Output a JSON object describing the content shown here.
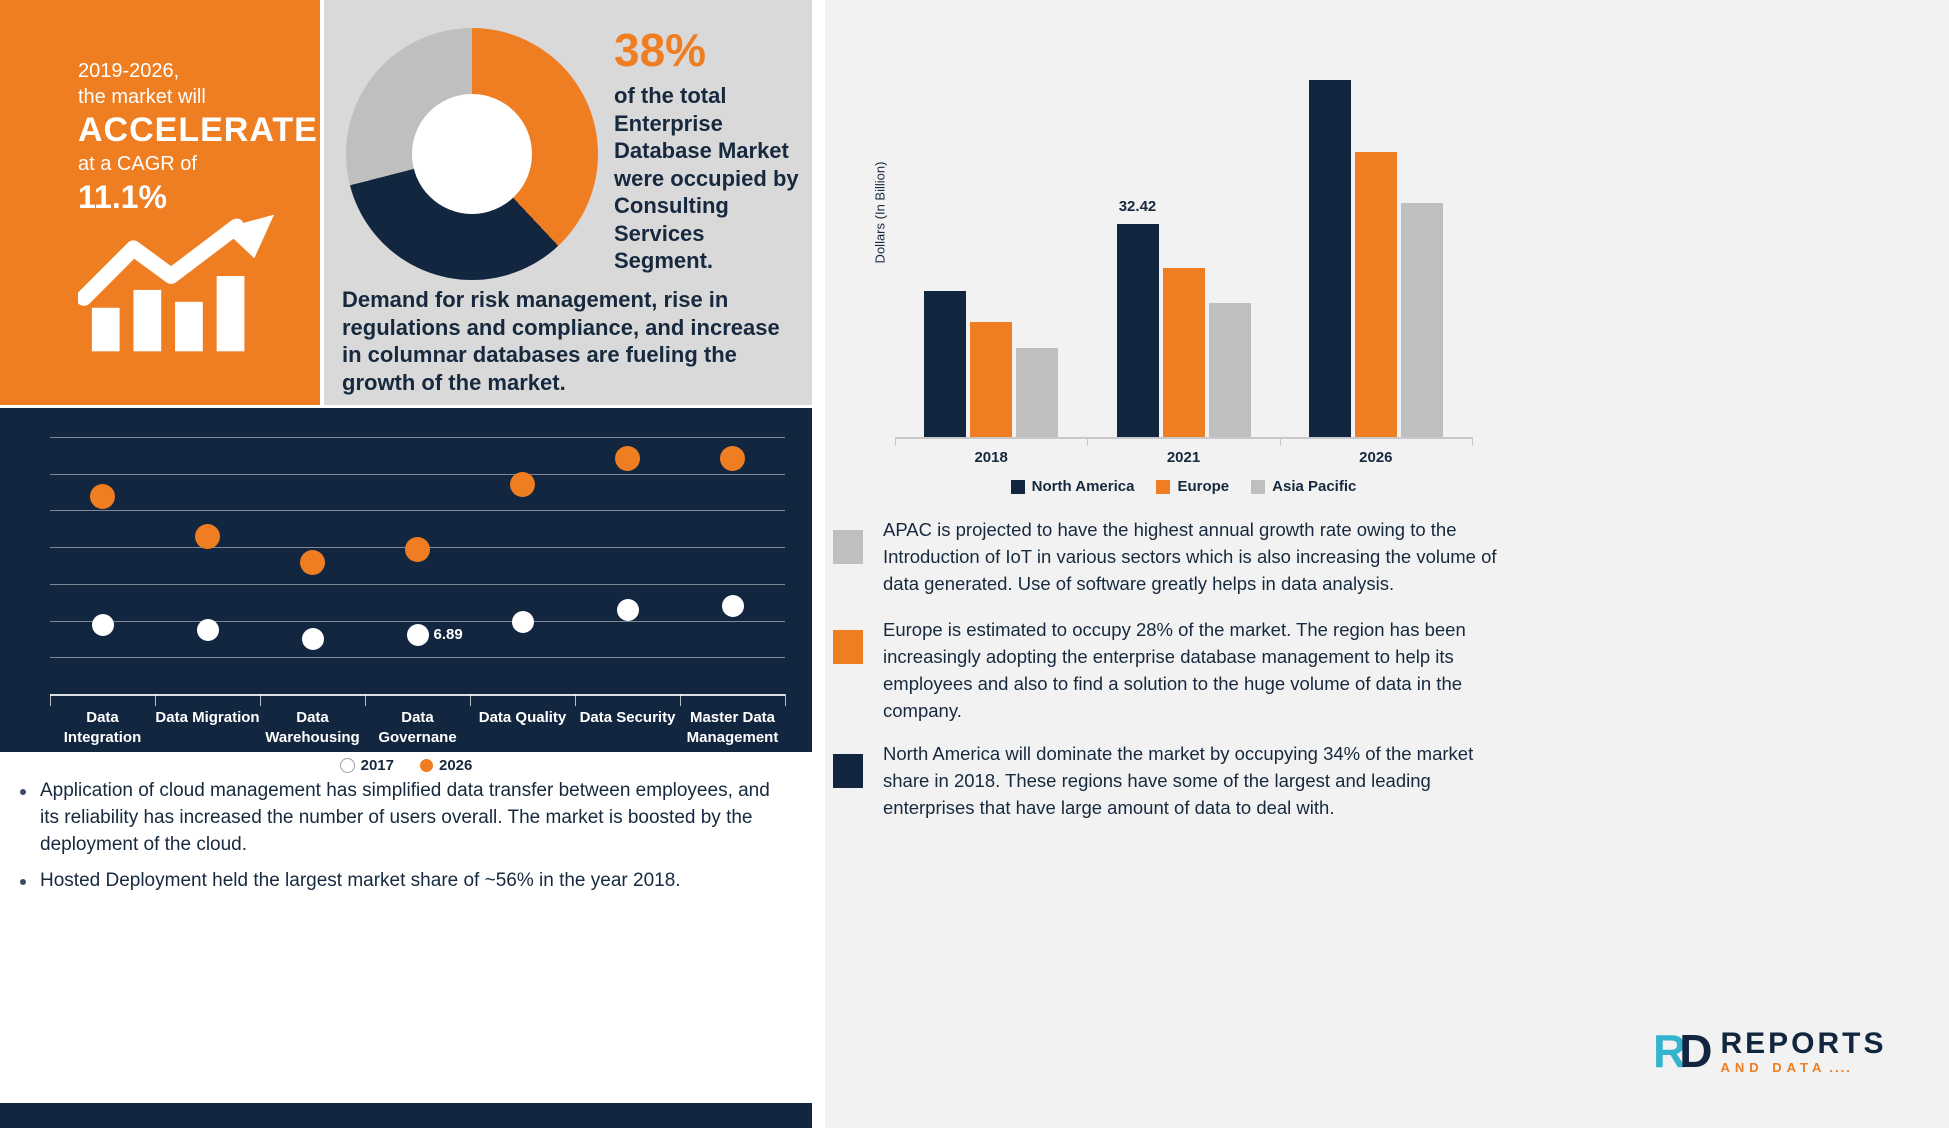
{
  "colors": {
    "orange": "#EF7D22",
    "navy": "#13263F",
    "text_navy": "#16293E",
    "panel_gray": "#D9D9D9",
    "bar_gray": "#BFBFBF",
    "right_bg": "#F2F2F2"
  },
  "cagr_panel": {
    "period": "2019-2026,",
    "line2": "the market will",
    "headline": "ACCELERATE",
    "line4": "at a CAGR of",
    "cagr": "11.1%"
  },
  "segment_panel": {
    "stat": "38%",
    "stat_desc": "of the total Enterprise Database Market were occupied by Consulting Services Segment.",
    "body": "Demand for risk management, rise in regulations and compliance, and increase in columnar databases are fueling the growth of the market."
  },
  "left_bullets": [
    "Application of cloud management has simplified data transfer between employees, and its reliability has increased the number of users overall. The market is boosted by the deployment of the cloud.",
    "Hosted Deployment held the largest market share of ~56% in the year 2018."
  ],
  "right_bullets": [
    {
      "marker_color": "#BFBFBF",
      "text": "APAC is projected to have the highest annual growth rate owing to the Introduction of IoT in various sectors which is also increasing the volume of data generated. Use of software greatly helps in data analysis."
    },
    {
      "marker_color": "#EF7D22",
      "text": "Europe is estimated to occupy 28% of the market. The region has been increasingly adopting the enterprise database management to help its employees and also to find a solution to the huge volume of data in the company."
    },
    {
      "marker_color": "#13263F",
      "text": "North America will dominate the market by occupying 34% of the market share in 2018. These regions have some of the largest and leading enterprises that have large amount of data to deal with."
    }
  ],
  "logo": {
    "mark_r": "R",
    "mark_d": "D",
    "name": "REPORTS",
    "sub": "AND DATA",
    "dots": "...."
  },
  "chart_data": [
    {
      "type": "pie",
      "subtype": "donut",
      "labels": [
        "Consulting Services",
        "Unlabeled (navy)",
        "Unlabeled (gray)"
      ],
      "values": [
        38,
        33,
        29
      ],
      "colors": [
        "#EF7D22",
        "#13263F",
        "#BFBFBF"
      ],
      "annotation": "38% of the total Enterprise Database Market were occupied by Consulting Services Segment."
    },
    {
      "type": "scatter",
      "categories": [
        "Data Integration",
        "Data Migration",
        "Data Warehousing",
        "Data Governane",
        "Data Quality",
        "Data Security",
        "Master Data Management"
      ],
      "series": [
        {
          "name": "2017",
          "color": "#FFFFFF",
          "values": [
            8.0,
            7.5,
            6.4,
            6.89,
            8.4,
            9.8,
            10.3
          ]
        },
        {
          "name": "2026",
          "color": "#EF7D22",
          "values": [
            23.0,
            18.4,
            15.4,
            16.9,
            24.4,
            27.5,
            27.5
          ]
        }
      ],
      "value_labels": [
        {
          "series": 0,
          "index": 3,
          "text": "6.89"
        }
      ],
      "ylim": [
        0,
        30
      ],
      "grid": true,
      "legend_position": "bottom"
    },
    {
      "type": "bar",
      "categories": [
        "2018",
        "2021",
        "2026"
      ],
      "series": [
        {
          "name": "North America",
          "color": "#13263F",
          "values": [
            22.2,
            32.42,
            54.3
          ]
        },
        {
          "name": "Europe",
          "color": "#EF7D22",
          "values": [
            17.5,
            25.7,
            43.4
          ]
        },
        {
          "name": "Asia Pacific",
          "color": "#BFBFBF",
          "values": [
            13.5,
            20.4,
            35.6
          ]
        }
      ],
      "value_labels": [
        {
          "series": 0,
          "index": 1,
          "text": "32.42"
        }
      ],
      "title": "",
      "xlabel": "",
      "ylabel": "Dollars (In Billion)",
      "ylim": [
        0,
        60
      ],
      "grid": false,
      "legend_position": "bottom"
    }
  ]
}
